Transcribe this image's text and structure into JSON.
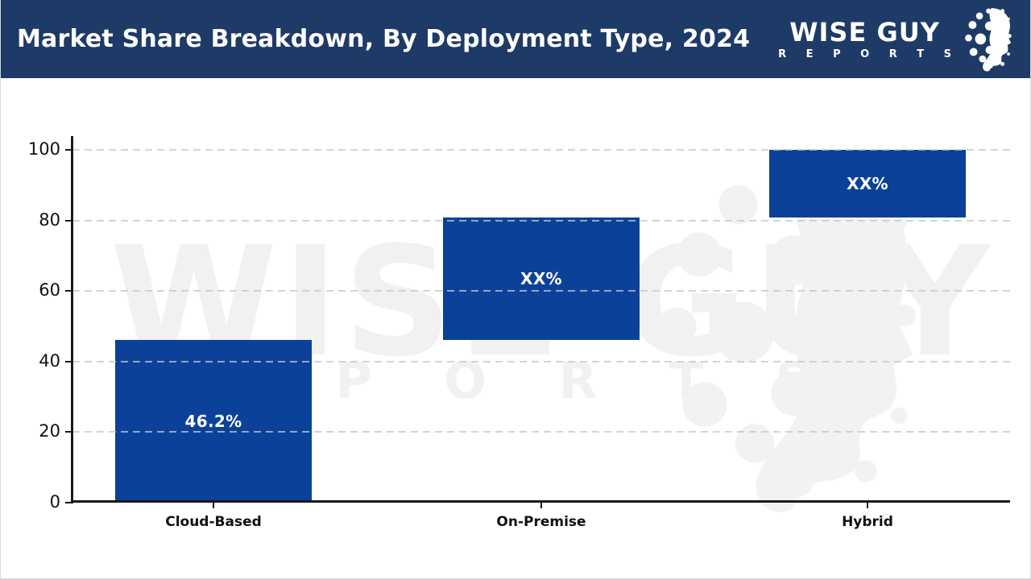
{
  "header": {
    "title": "Market Share Breakdown, By Deployment Type, 2024",
    "logo": {
      "line1": "WISE GUY",
      "line2": "R E P O R T S"
    }
  },
  "watermark": {
    "line1": "WISE GUY",
    "line2": "R E P O R T S"
  },
  "colors": {
    "header_bg": "#1e3a66",
    "bar_fill": "#0c419a",
    "bar_label": "#ffffff",
    "gridline": "#d9d9d9",
    "axis": "#1a1a1a",
    "watermark": "#f1f1f1",
    "tick_label": "#111111"
  },
  "chart_data": {
    "type": "bar",
    "subtype": "waterfall",
    "title": "Market Share Breakdown, By Deployment Type, 2024",
    "categories": [
      "Cloud-Based",
      "On-Premise",
      "Hybrid"
    ],
    "series": [
      {
        "name": "Market Share",
        "segments": [
          {
            "category": "Cloud-Based",
            "start": 0,
            "end": 46.2,
            "label": "46.2%"
          },
          {
            "category": "On-Premise",
            "start": 46.2,
            "end": 80.8,
            "label": "XX%"
          },
          {
            "category": "Hybrid",
            "start": 80.8,
            "end": 100,
            "label": "XX%"
          }
        ]
      }
    ],
    "xlabel": "",
    "ylabel": "",
    "ylim": [
      0,
      100
    ],
    "yticks": [
      0,
      20,
      40,
      60,
      80,
      100
    ],
    "grid": "horizontal-dashed",
    "legend": "none"
  }
}
